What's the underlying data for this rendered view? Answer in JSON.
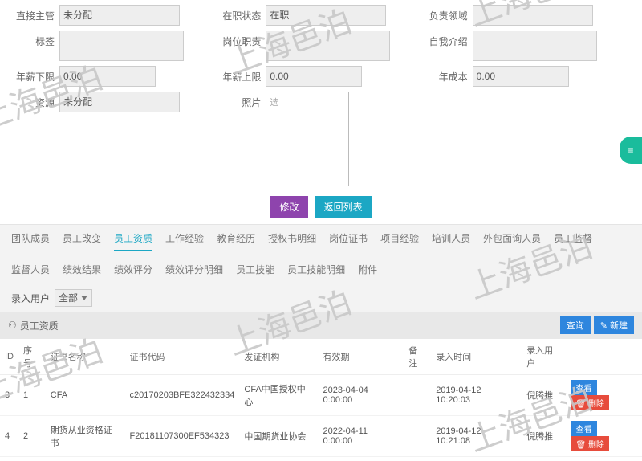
{
  "watermark": "上海邑泊",
  "form": {
    "manager": {
      "label": "直接主管",
      "value": "未分配"
    },
    "status": {
      "label": "在职状态",
      "value": "在职"
    },
    "domain": {
      "label": "负责领域",
      "value": ""
    },
    "tags": {
      "label": "标签",
      "value": ""
    },
    "duty": {
      "label": "岗位职责",
      "value": ""
    },
    "intro": {
      "label": "自我介绍",
      "value": ""
    },
    "salary_min": {
      "label": "年薪下限",
      "value": "0.00"
    },
    "salary_max": {
      "label": "年薪上限",
      "value": "0.00"
    },
    "annual_cost": {
      "label": "年成本",
      "value": "0.00"
    },
    "source": {
      "label": "资源",
      "value": "未分配"
    },
    "photo": {
      "label": "照片",
      "placeholder": "选"
    }
  },
  "buttons": {
    "modify": "修改",
    "back": "返回列表"
  },
  "tabs": [
    "团队成员",
    "员工改变",
    "员工资质",
    "工作经验",
    "教育经历",
    "授权书明细",
    "岗位证书",
    "项目经验",
    "培训人员",
    "外包面询人员",
    "员工监督",
    "监督人员",
    "绩效结果",
    "绩效评分",
    "绩效评分明细",
    "员工技能",
    "员工技能明细",
    "附件"
  ],
  "active_tab": 2,
  "filter": {
    "label": "录入用户",
    "value": "全部"
  },
  "section": {
    "title": "员工资质",
    "search": "查询",
    "add": "新建"
  },
  "table": {
    "columns": [
      "ID",
      "序号",
      "证书名称",
      "证书代码",
      "发证机构",
      "有效期",
      "备注",
      "录入时间",
      "录入用户",
      ""
    ],
    "rows": [
      {
        "id": "3",
        "seq": "1",
        "name": "CFA",
        "code": "c20170203BFE322432334",
        "org": "CFA中国授权中心",
        "expire": "2023-04-04 0:00:00",
        "remark": "",
        "ctime": "2019-04-12 10:20:03",
        "user": "倪腾推"
      },
      {
        "id": "4",
        "seq": "2",
        "name": "期货从业资格证书",
        "code": "F20181107300EF534323",
        "org": "中国期货业协会",
        "expire": "2022-04-11 0:00:00",
        "remark": "",
        "ctime": "2019-04-12 10:21:08",
        "user": "倪腾推"
      }
    ],
    "actions": {
      "view": "查看",
      "delete": "删除"
    }
  },
  "colors": {
    "purple": "#8e44ad",
    "teal": "#1ca7c4",
    "blue": "#2e86de",
    "red": "#e74c3c",
    "fab": "#1abc9c"
  }
}
